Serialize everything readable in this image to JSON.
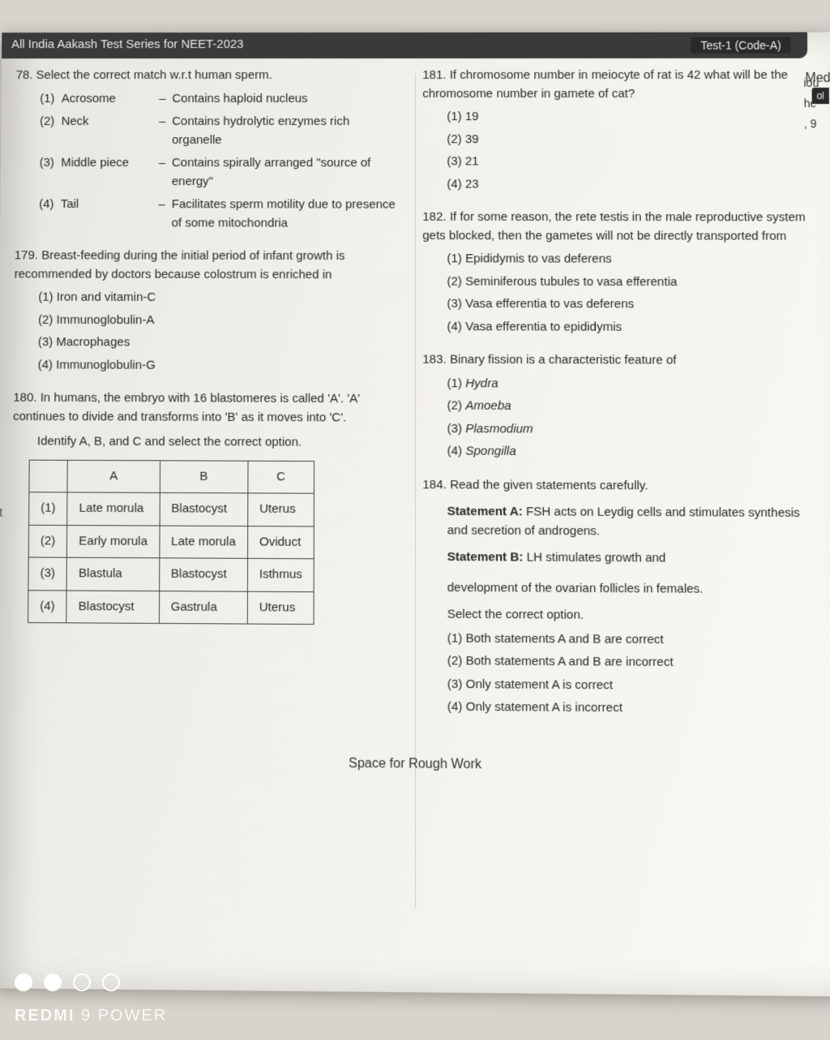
{
  "header": {
    "series": "All India Aakash Test Series for NEET-2023",
    "test_code": "Test-1 (Code-A)"
  },
  "margin": {
    "corner": "Med",
    "badge": "ol",
    "frag1": "iou",
    "frag2": "he",
    "frag3": ", 9"
  },
  "q178": {
    "num": "78.",
    "text": "Select the correct match w.r.t human sperm.",
    "rows": [
      {
        "n": "(1)",
        "l": "Acrosome",
        "dash": "–",
        "d": "Contains haploid nucleus"
      },
      {
        "n": "(2)",
        "l": "Neck",
        "dash": "–",
        "d": "Contains hydrolytic enzymes rich organelle"
      },
      {
        "n": "(3)",
        "l": "Middle piece",
        "dash": "–",
        "d": "Contains spirally arranged \"source of energy\""
      },
      {
        "n": "(4)",
        "l": "Tail",
        "dash": "–",
        "d": "Facilitates sperm motility due to presence of some mitochondria"
      }
    ]
  },
  "q179": {
    "num": "179.",
    "text": "Breast-feeding during the initial period of infant growth is recommended by doctors because colostrum is enriched in",
    "opts": [
      "(1) Iron and vitamin-C",
      "(2) Immunoglobulin-A",
      "(3) Macrophages",
      "(4) Immunoglobulin-G"
    ]
  },
  "q180": {
    "num": "180.",
    "text": "In humans, the embryo with 16 blastomeres is called 'A'. 'A' continues to divide and transforms into 'B' as it moves into 'C'.",
    "ident": "Identify A, B, and C and select the correct option.",
    "headers": [
      "",
      "A",
      "B",
      "C"
    ],
    "rows": [
      [
        "(1)",
        "Late morula",
        "Blastocyst",
        "Uterus"
      ],
      [
        "(2)",
        "Early morula",
        "Late morula",
        "Oviduct"
      ],
      [
        "(3)",
        "Blastula",
        "Blastocyst",
        "Isthmus"
      ],
      [
        "(4)",
        "Blastocyst",
        "Gastrula",
        "Uterus"
      ]
    ]
  },
  "q181": {
    "num": "181.",
    "text": "If chromosome number in meiocyte of rat is 42 what will be the chromosome number in gamete of cat?",
    "opts": [
      "(1) 19",
      "(2) 39",
      "(3) 21",
      "(4) 23"
    ]
  },
  "q182": {
    "num": "182.",
    "text": "If for some reason, the rete testis in the male reproductive system gets blocked, then the gametes will not be directly transported from",
    "opts": [
      "(1) Epididymis to vas deferens",
      "(2) Seminiferous tubules to vasa efferentia",
      "(3) Vasa efferentia to vas deferens",
      "(4) Vasa efferentia to epididymis"
    ]
  },
  "q183": {
    "num": "183.",
    "text": "Binary fission is a characteristic feature of",
    "opts": [
      "(1) Hydra",
      "(2) Amoeba",
      "(3) Plasmodium",
      "(4) Spongilla"
    ],
    "italic": [
      true,
      true,
      true,
      true
    ]
  },
  "q184": {
    "num": "184.",
    "text": "Read the given statements carefully.",
    "stA_label": "Statement A:",
    "stA": " FSH acts on Leydig cells and stimulates synthesis and secretion of androgens.",
    "stB_label": "Statement B:",
    "stB": " LH stimulates growth and",
    "cont": "development of the ovarian follicles in females.",
    "sel": "Select the correct option.",
    "opts": [
      "(1) Both statements A and B are correct",
      "(2) Both statements A and B are incorrect",
      "(3) Only statement A is correct",
      "(4) Only statement A is incorrect"
    ]
  },
  "rough": "Space for Rough Work",
  "watermark": {
    "brand": "REDMI",
    "model": " 9 POWER"
  },
  "side_t": "t"
}
